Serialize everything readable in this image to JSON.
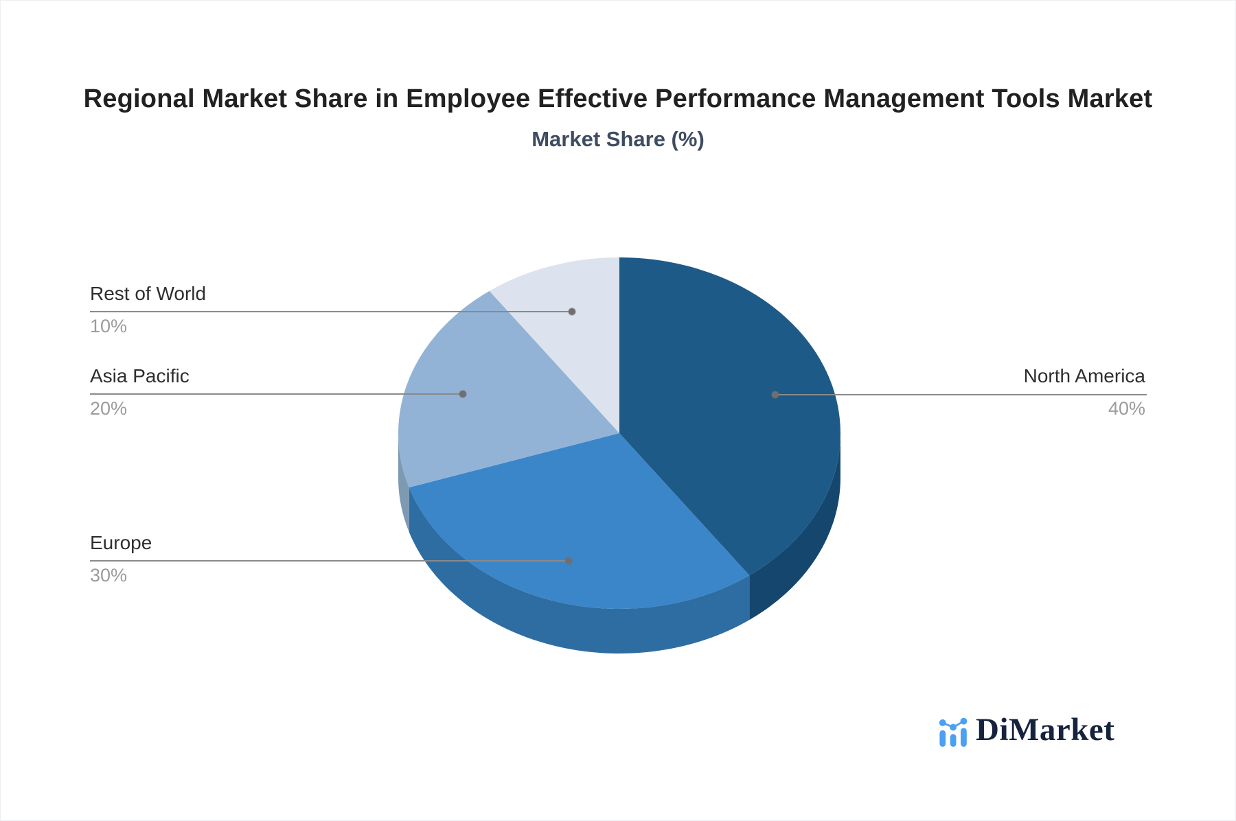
{
  "header": {
    "title": "Regional Market Share in Employee Effective Performance Management Tools Market",
    "subtitle": "Market Share (%)"
  },
  "chart_data": {
    "type": "pie",
    "style": "3d",
    "title": "Regional Market Share in Employee Effective Performance Management Tools Market",
    "subtitle": "Market Share (%)",
    "unit": "%",
    "direction": "clockwise",
    "start_angle_deg": 0,
    "categories": [
      "North America",
      "Europe",
      "Asia Pacific",
      "Rest of World"
    ],
    "values": [
      40,
      30,
      20,
      10
    ],
    "slices": [
      {
        "name": "North America",
        "value": 40,
        "pct_label": "40%",
        "color": "#1e5a88",
        "side_color": "#15466e"
      },
      {
        "name": "Europe",
        "value": 30,
        "pct_label": "30%",
        "color": "#3a86c8",
        "side_color": "#2e6da1"
      },
      {
        "name": "Asia Pacific",
        "value": 20,
        "pct_label": "20%",
        "color": "#92b3d6",
        "side_color": "#7e99b2"
      },
      {
        "name": "Rest of World",
        "value": 10,
        "pct_label": "10%",
        "color": "#dce3ee",
        "side_color": "#b9c4d4"
      }
    ],
    "callout_line_color": "#8a8a8a",
    "label_color": "#2e2e2e",
    "pct_color": "#9c9c9c"
  },
  "branding": {
    "logo_text": "DiMarket",
    "logo_icon": "bar-line-chart-icon",
    "logo_icon_color": "#4ba0f2",
    "logo_text_color": "#16233e"
  }
}
